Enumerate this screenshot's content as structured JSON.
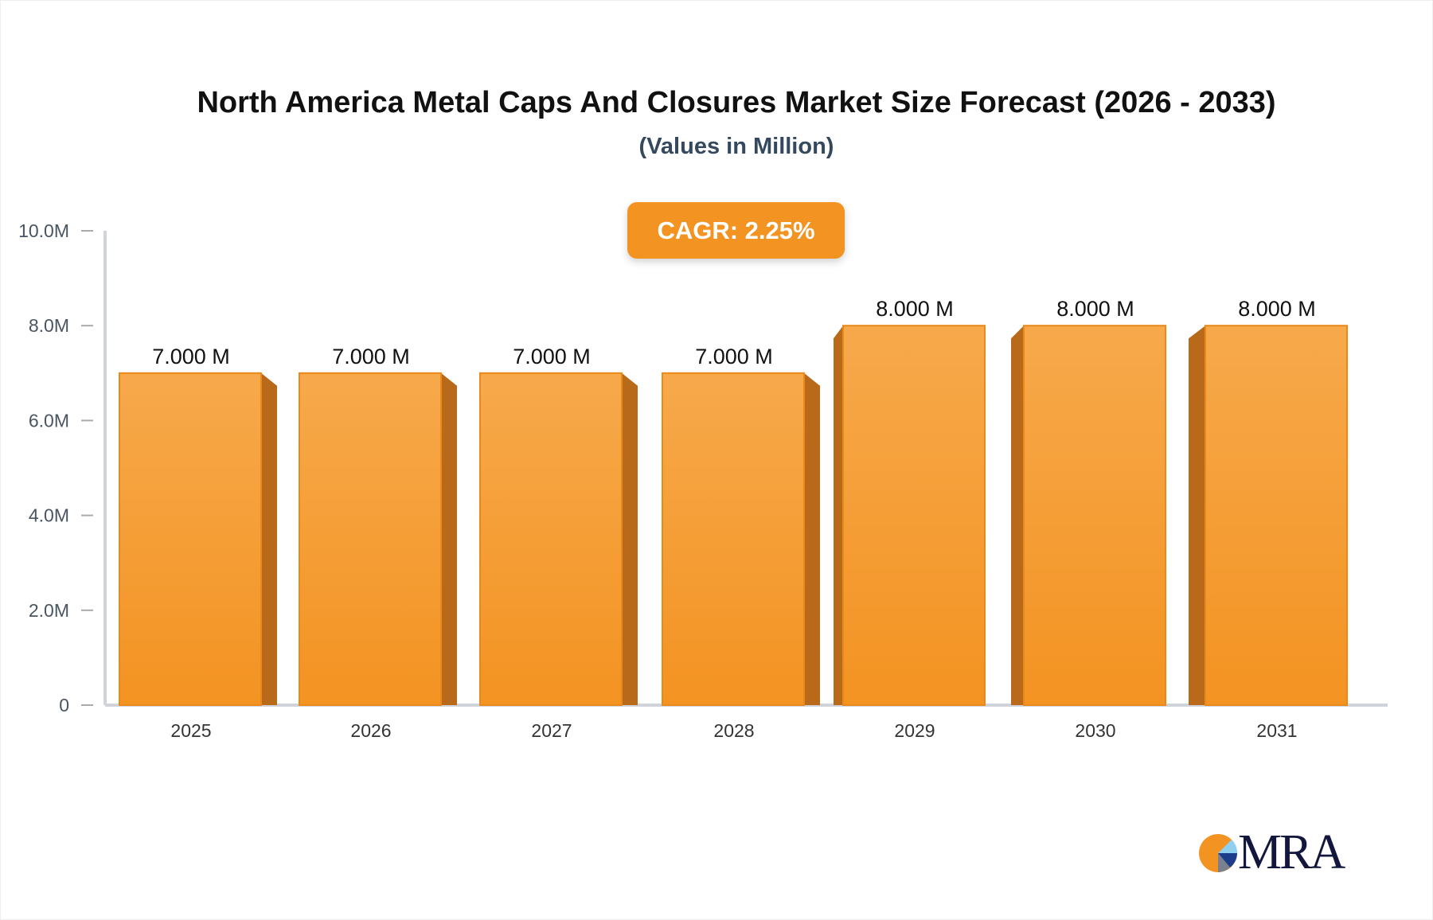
{
  "chart_data": {
    "type": "bar",
    "title": "North America Metal Caps And Closures Market Size Forecast (2026 - 2033)",
    "subtitle": "(Values in Million)",
    "annotation": "CAGR: 2.25%",
    "categories": [
      "2025",
      "2026",
      "2027",
      "2028",
      "2029",
      "2030",
      "2031"
    ],
    "values": [
      7.0,
      7.0,
      7.0,
      7.0,
      8.0,
      8.0,
      8.0
    ],
    "data_labels": [
      "7.000 M",
      "7.000 M",
      "7.000 M",
      "7.000 M",
      "8.000 M",
      "8.000 M",
      "8.000 M"
    ],
    "unit": "M",
    "ylim": [
      0,
      10
    ],
    "y_ticks": [
      0,
      2,
      4,
      6,
      8,
      10
    ],
    "y_tick_labels": [
      "0",
      "2.0M",
      "4.0M",
      "6.0M",
      "8.0M",
      "10.0M"
    ],
    "grid": false,
    "colors": {
      "bar": "#f5a03a",
      "bar_side": "#b8691a",
      "bar_edge": "#e8891a",
      "axis": "#d0d3da"
    }
  },
  "logo": {
    "text": "MRA"
  }
}
